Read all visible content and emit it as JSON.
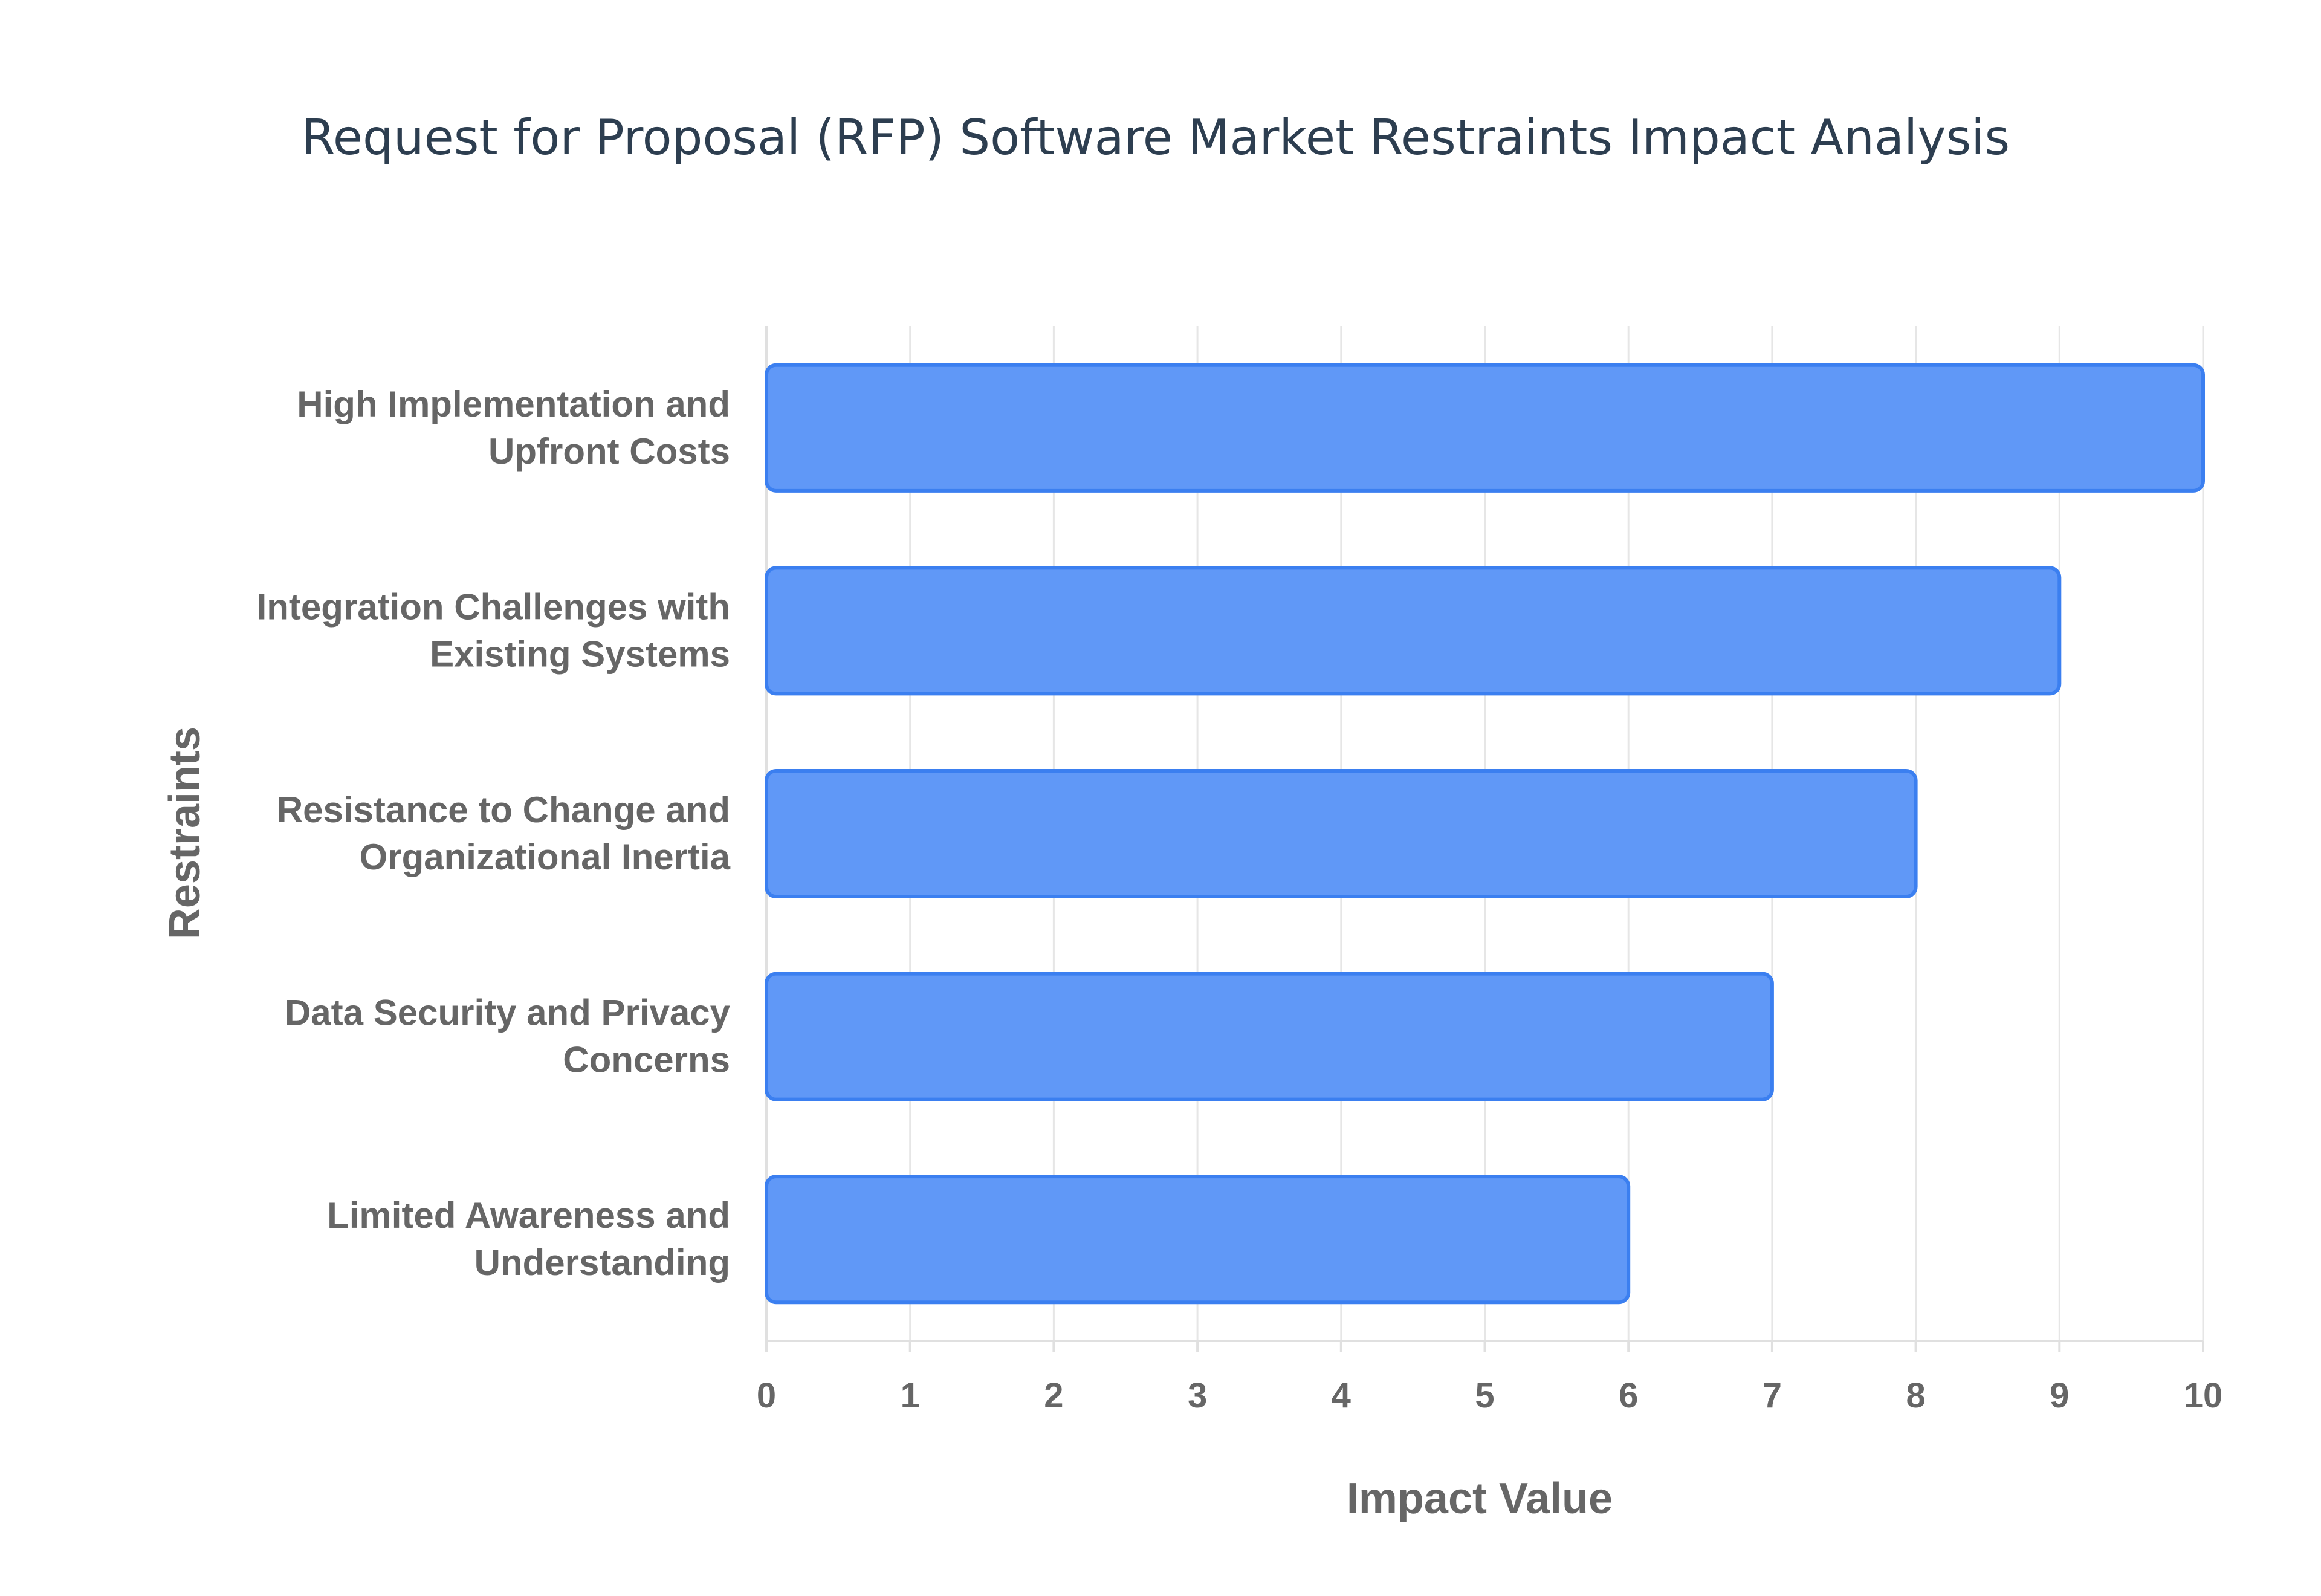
{
  "chart_data": {
    "type": "bar",
    "orientation": "horizontal",
    "title": "Request for Proposal (RFP) Software Market Restraints Impact Analysis",
    "xlabel": "Impact Value",
    "ylabel": "Restraints",
    "xlim": [
      0,
      10
    ],
    "x_ticks": [
      "0",
      "1",
      "2",
      "3",
      "4",
      "5",
      "6",
      "7",
      "8",
      "9",
      "10"
    ],
    "grid": "on",
    "categories": [
      [
        "High Implementation and",
        "Upfront Costs"
      ],
      [
        "Integration Challenges with",
        "Existing Systems"
      ],
      [
        "Resistance to Change and",
        "Organizational Inertia"
      ],
      [
        "Data Security and Privacy",
        "Concerns"
      ],
      [
        "Limited Awareness and",
        "Understanding"
      ]
    ],
    "values": [
      10,
      9,
      8,
      7,
      6
    ],
    "bar_color": "#6098f7",
    "bar_edge_color": "#3b7ff0"
  }
}
